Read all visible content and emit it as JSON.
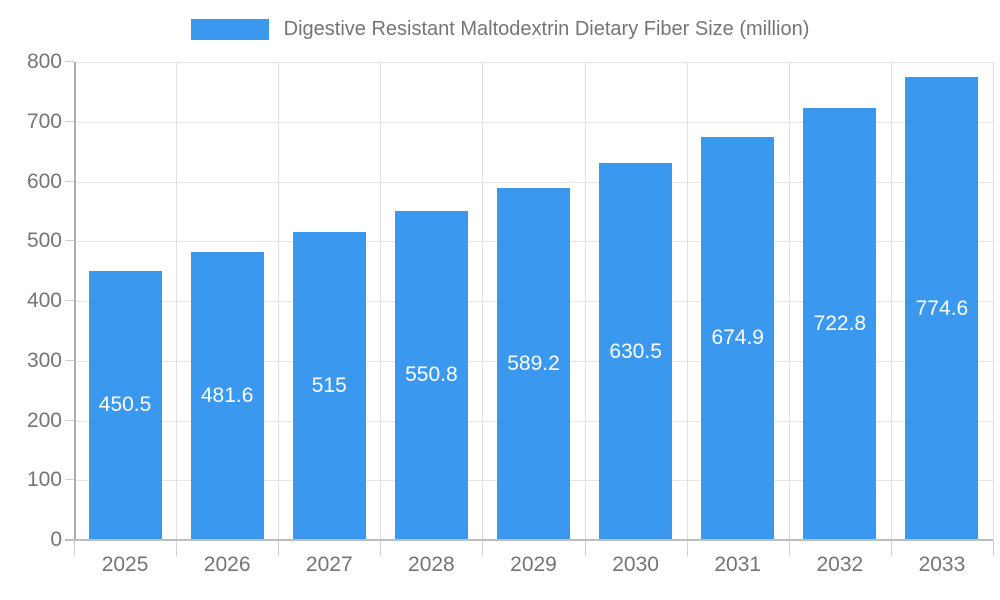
{
  "chart_data": {
    "type": "bar",
    "title": "Digestive Resistant Maltodextrin Dietary Fiber Size (million)",
    "legend": [
      "Digestive Resistant Maltodextrin Dietary Fiber Size (million)"
    ],
    "legend_position": "top",
    "categories": [
      "2025",
      "2026",
      "2027",
      "2028",
      "2029",
      "2030",
      "2031",
      "2032",
      "2033"
    ],
    "values": [
      450.5,
      481.6,
      515,
      550.8,
      589.2,
      630.5,
      674.9,
      722.8,
      774.6
    ],
    "value_labels": [
      "450.5",
      "481.6",
      "515",
      "550.8",
      "589.2",
      "630.5",
      "674.9",
      "722.8",
      "774.6"
    ],
    "xlabel": "",
    "ylabel": "",
    "ylim": [
      0,
      800
    ],
    "yticks": [
      0,
      100,
      200,
      300,
      400,
      500,
      600,
      700,
      800
    ],
    "grid": true,
    "colors": {
      "bar": "#3A99EF",
      "bar_label": "#FFFFFF",
      "axis_text": "#757575",
      "hgrid": "#E6E6E6",
      "vgrid": "#E0E0E0",
      "axis_line": "#ADADAD",
      "tick": "#CFCFCF",
      "background": "#FFFFFF"
    }
  }
}
